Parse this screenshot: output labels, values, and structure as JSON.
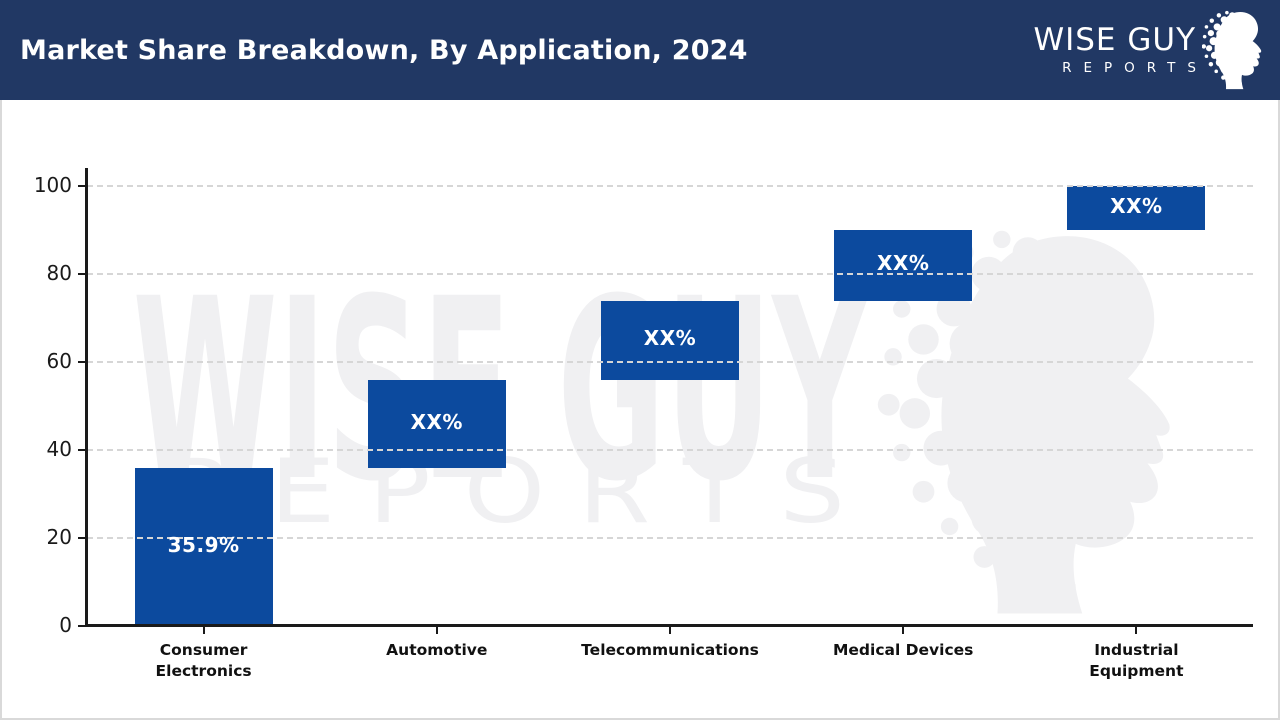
{
  "header": {
    "title": "Market Share Breakdown, By Application, 2024",
    "logo": {
      "line1": "WISE GUY",
      "line2": "REPORTS",
      "face_icon": "head-profile-dots-icon"
    }
  },
  "watermark": {
    "line1": "WISE GUY",
    "line2": "R E P O R T S",
    "face_icon": "head-profile-dots-icon"
  },
  "colors": {
    "header_bg": "#213864",
    "title": "#FFFFFF",
    "bar": "#0C4A9E",
    "bar_label": "#FFFFFF",
    "axis": "#1A1A1A",
    "grid": "#D6D6D6",
    "watermark": "#F0F0F2",
    "page_border": "#D9D9D9"
  },
  "chart_data": {
    "type": "bar",
    "subtype": "waterfall",
    "title": "Market Share Breakdown, By Application, 2024",
    "xlabel": "",
    "ylabel": "",
    "categories": [
      "Consumer\nElectronics",
      "Automotive",
      "Telecommunications",
      "Medical Devices",
      "Industrial\nEquipment"
    ],
    "series": [
      {
        "name": "Market Share (%)",
        "segments": [
          {
            "category": "Consumer Electronics",
            "start": 0,
            "end": 35.9,
            "label": "35.9%"
          },
          {
            "category": "Automotive",
            "start": 35.9,
            "end": 55.9,
            "label": "XX%"
          },
          {
            "category": "Telecommunications",
            "start": 55.9,
            "end": 73.9,
            "label": "XX%"
          },
          {
            "category": "Medical Devices",
            "start": 73.9,
            "end": 89.9,
            "label": "XX%"
          },
          {
            "category": "Industrial Equipment",
            "start": 89.9,
            "end": 100,
            "label": "XX%"
          }
        ]
      }
    ],
    "yticks": [
      0,
      20,
      40,
      60,
      80,
      100
    ],
    "ylim": [
      0,
      104
    ],
    "grid": "horizontal-dashed-over-bars",
    "legend": "none"
  }
}
